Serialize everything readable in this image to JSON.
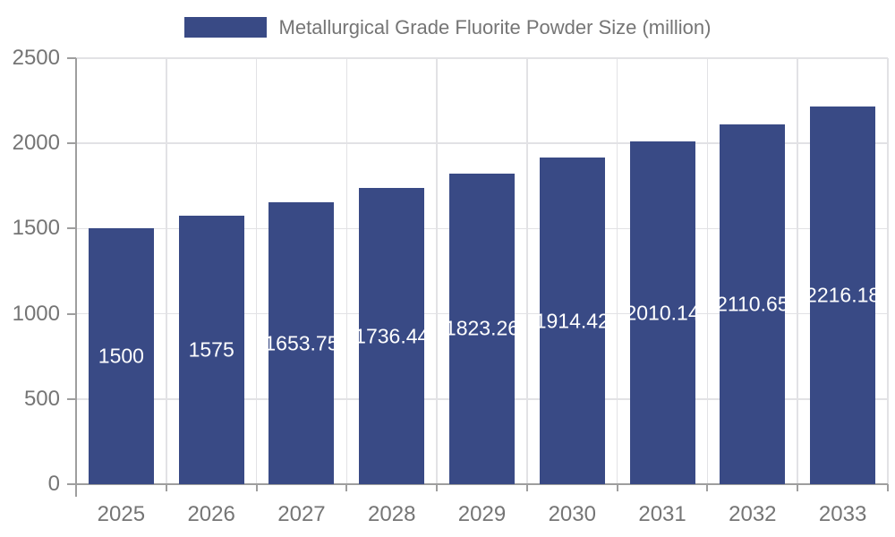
{
  "legend": {
    "label": "Metallurgical Grade Fluorite Powder Size (million)"
  },
  "chart_data": {
    "type": "bar",
    "title": "Metallurgical Grade Fluorite Powder Size (million)",
    "categories": [
      "2025",
      "2026",
      "2027",
      "2028",
      "2029",
      "2030",
      "2031",
      "2032",
      "2033"
    ],
    "values": [
      1500,
      1575,
      1653.75,
      1736.44,
      1823.26,
      1914.42,
      2010.14,
      2110.65,
      2216.18
    ],
    "value_labels": [
      "1500",
      "1575",
      "1653.75",
      "1736.44",
      "1823.26",
      "1914.42",
      "2010.14",
      "2110.65",
      "2216.18"
    ],
    "xlabel": "",
    "ylabel": "",
    "ylim": [
      0,
      2500
    ],
    "yticks": [
      0,
      500,
      1000,
      1500,
      2000,
      2500
    ],
    "grid": true,
    "legend_position": "top",
    "colors": {
      "bar": "#394a85",
      "bar_label_text": "#ffffff",
      "axis_text": "#757575",
      "grid_line": "#e2e2e5",
      "axis_line": "#9e9e9e",
      "background": "#ffffff"
    }
  }
}
